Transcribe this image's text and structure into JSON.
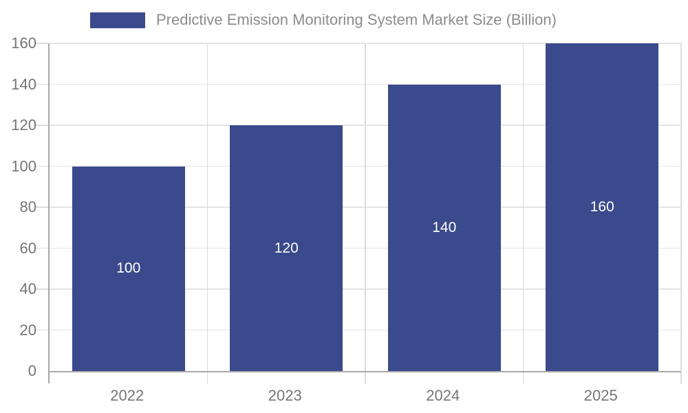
{
  "chart_data": {
    "type": "bar",
    "title": "Predictive Emission Monitoring System Market Size (Billion)",
    "legend": [
      "Predictive Emission Monitoring System Market Size (Billion)"
    ],
    "legend_position": "top",
    "categories": [
      "2022",
      "2023",
      "2024",
      "2025"
    ],
    "values": [
      100,
      120,
      140,
      160
    ],
    "series": [
      {
        "name": "Predictive Emission Monitoring System Market Size (Billion)",
        "values": [
          100,
          120,
          140,
          160
        ]
      }
    ],
    "xlabel": "",
    "ylabel": "",
    "ylim": [
      0,
      160
    ],
    "ytick_step": 20,
    "ytick_labels": [
      "0",
      "20",
      "40",
      "60",
      "80",
      "100",
      "120",
      "140",
      "160"
    ],
    "grid": "on",
    "value_labels_shown": true,
    "colors": {
      "bar": "#3A4A8C",
      "value_label_text": "#FFFFFF",
      "legend_text": "#8C8C8C",
      "tick_text": "#757575",
      "axis_line": "#A8A8A8",
      "hgrid_line": "#E4E4E4",
      "vgrid_line": "#DBDBDB",
      "background": "#FFFFFF"
    }
  }
}
